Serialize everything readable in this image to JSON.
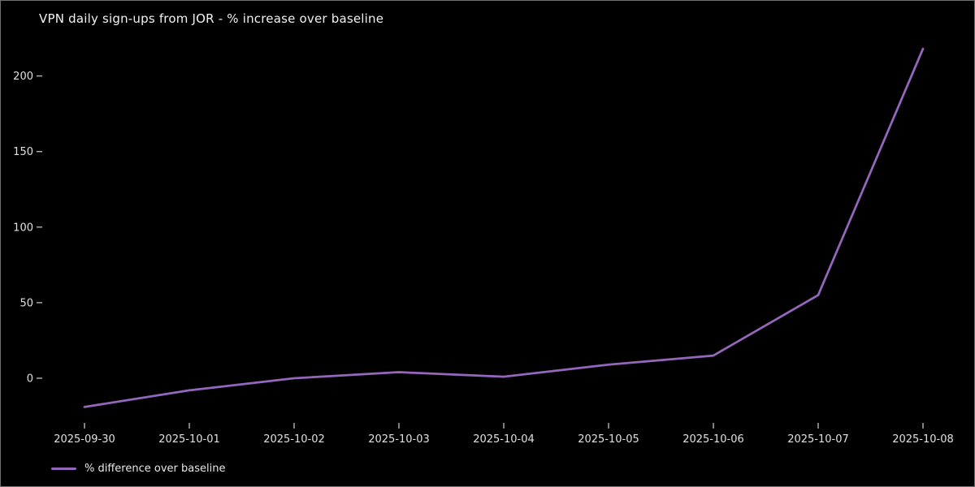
{
  "title": "VPN daily sign-ups from JOR - % increase over baseline",
  "legend": {
    "label": "% difference over baseline"
  },
  "colors": {
    "background": "#000000",
    "border": "#6f6f6f",
    "line": "#9467bd",
    "title_text": "#f2f2f2",
    "tick_text": "#e0e0e0",
    "tick_mark": "#b5b5b5"
  },
  "chart_data": {
    "type": "line",
    "title": "VPN daily sign-ups from JOR - % increase over baseline",
    "x": [
      "2025-09-30",
      "2025-10-01",
      "2025-10-02",
      "2025-10-03",
      "2025-10-04",
      "2025-10-05",
      "2025-10-06",
      "2025-10-07",
      "2025-10-08"
    ],
    "series": [
      {
        "name": "% difference over baseline",
        "values": [
          -19,
          -8,
          0,
          4,
          1,
          9,
          15,
          55,
          218
        ]
      }
    ],
    "xlabel": "",
    "ylabel": "",
    "yticks": [
      0,
      50,
      100,
      150,
      200
    ],
    "ylim": [
      -27,
      228
    ],
    "grid": false,
    "legend_position": "lower-left",
    "background": "black"
  }
}
